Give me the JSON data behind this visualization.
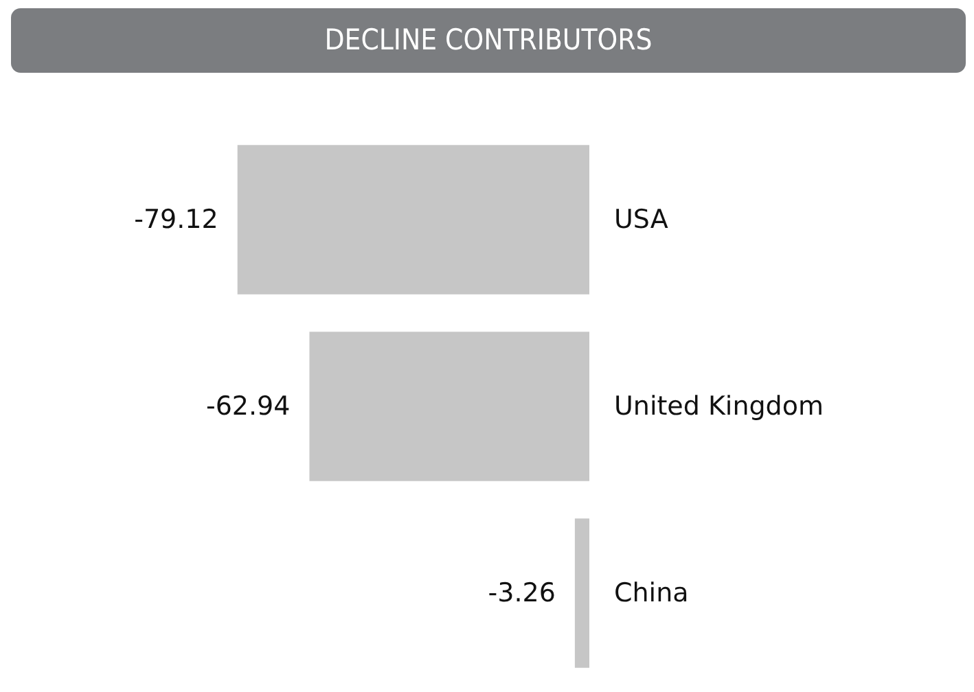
{
  "chart_data": {
    "type": "bar",
    "title": "DECLINE CONTRIBUTORS",
    "orientation": "horizontal",
    "categories": [
      "USA",
      "United Kingdom",
      "China"
    ],
    "values": [
      -79.12,
      -62.94,
      -3.26
    ],
    "color": "#c6c6c6",
    "data_labels": true
  }
}
